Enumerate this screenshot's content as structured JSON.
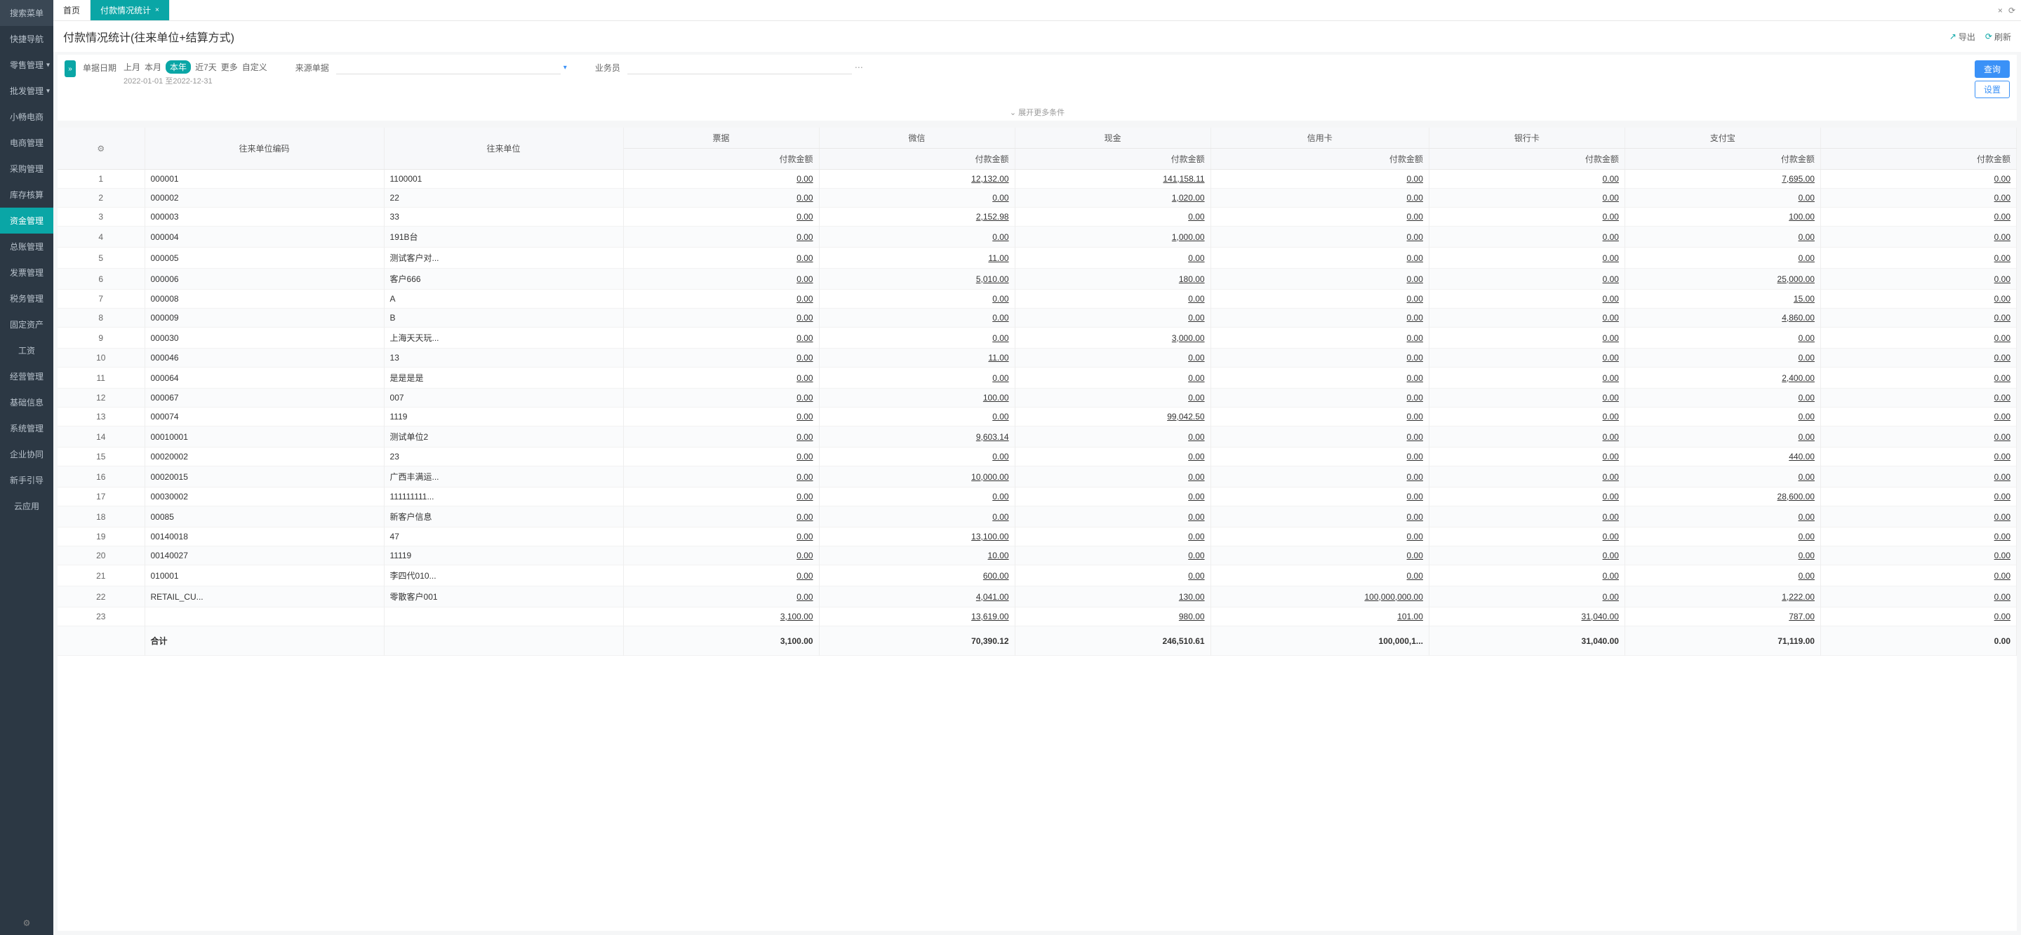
{
  "sidebar": {
    "items": [
      {
        "label": "搜索菜单",
        "active": false,
        "arrow": false
      },
      {
        "label": "快捷导航",
        "active": false,
        "arrow": false
      },
      {
        "label": "零售管理",
        "active": false,
        "arrow": true
      },
      {
        "label": "批发管理",
        "active": false,
        "arrow": true
      },
      {
        "label": "小畅电商",
        "active": false,
        "arrow": false
      },
      {
        "label": "电商管理",
        "active": false,
        "arrow": false
      },
      {
        "label": "采购管理",
        "active": false,
        "arrow": false
      },
      {
        "label": "库存核算",
        "active": false,
        "arrow": false
      },
      {
        "label": "资金管理",
        "active": true,
        "arrow": false
      },
      {
        "label": "总账管理",
        "active": false,
        "arrow": false
      },
      {
        "label": "发票管理",
        "active": false,
        "arrow": false
      },
      {
        "label": "税务管理",
        "active": false,
        "arrow": false
      },
      {
        "label": "固定资产",
        "active": false,
        "arrow": false
      },
      {
        "label": "工资",
        "active": false,
        "arrow": false
      },
      {
        "label": "经营管理",
        "active": false,
        "arrow": false
      },
      {
        "label": "基础信息",
        "active": false,
        "arrow": false
      },
      {
        "label": "系统管理",
        "active": false,
        "arrow": false
      },
      {
        "label": "企业协同",
        "active": false,
        "arrow": false
      },
      {
        "label": "新手引导",
        "active": false,
        "arrow": false
      },
      {
        "label": "云应用",
        "active": false,
        "arrow": false
      }
    ],
    "footer_icon": "⚙"
  },
  "tabs": {
    "items": [
      {
        "label": "首页",
        "active": false,
        "closable": false
      },
      {
        "label": "付款情况统计",
        "active": true,
        "closable": true
      }
    ],
    "right_icons": [
      "×",
      "⟳"
    ]
  },
  "page": {
    "title": "付款情况统计(往来单位+结算方式)",
    "actions": [
      {
        "label": "导出",
        "icon": "↗"
      },
      {
        "label": "刷新",
        "icon": "⟳"
      }
    ]
  },
  "filter": {
    "collapse_icon": "»",
    "date_label": "单据日期",
    "date_presets": [
      {
        "label": "上月",
        "active": false
      },
      {
        "label": "本月",
        "active": false
      },
      {
        "label": "本年",
        "active": true
      },
      {
        "label": "近7天",
        "active": false
      },
      {
        "label": "更多",
        "active": false
      },
      {
        "label": "自定义",
        "active": false
      }
    ],
    "date_range": "2022-01-01 至2022-12-31",
    "source_label": "来源单据",
    "operator_label": "业务员",
    "query_btn": "查询",
    "setting_btn": "设置",
    "expand_more": "展开更多条件"
  },
  "table": {
    "gear_icon": "⚙",
    "columns": {
      "code": "往来单位编码",
      "name": "往来单位",
      "groups": [
        "票据",
        "微信",
        "现金",
        "信用卡",
        "银行卡",
        "支付宝",
        ""
      ],
      "sub": "付款金额"
    },
    "rows": [
      {
        "idx": "1",
        "code": "000001",
        "name": "1100001",
        "amts": [
          "0.00",
          "12,132.00",
          "141,158.11",
          "0.00",
          "0.00",
          "7,695.00",
          "0.00"
        ]
      },
      {
        "idx": "2",
        "code": "000002",
        "name": "22",
        "amts": [
          "0.00",
          "0.00",
          "1,020.00",
          "0.00",
          "0.00",
          "0.00",
          "0.00"
        ]
      },
      {
        "idx": "3",
        "code": "000003",
        "name": "33",
        "amts": [
          "0.00",
          "2,152.98",
          "0.00",
          "0.00",
          "0.00",
          "100.00",
          "0.00"
        ]
      },
      {
        "idx": "4",
        "code": "000004",
        "name": "191B台",
        "amts": [
          "0.00",
          "0.00",
          "1,000.00",
          "0.00",
          "0.00",
          "0.00",
          "0.00"
        ]
      },
      {
        "idx": "5",
        "code": "000005",
        "name": "测试客户对...",
        "amts": [
          "0.00",
          "11.00",
          "0.00",
          "0.00",
          "0.00",
          "0.00",
          "0.00"
        ]
      },
      {
        "idx": "6",
        "code": "000006",
        "name": "客户666",
        "amts": [
          "0.00",
          "5,010.00",
          "180.00",
          "0.00",
          "0.00",
          "25,000.00",
          "0.00"
        ]
      },
      {
        "idx": "7",
        "code": "000008",
        "name": "A",
        "amts": [
          "0.00",
          "0.00",
          "0.00",
          "0.00",
          "0.00",
          "15.00",
          "0.00"
        ]
      },
      {
        "idx": "8",
        "code": "000009",
        "name": "B",
        "amts": [
          "0.00",
          "0.00",
          "0.00",
          "0.00",
          "0.00",
          "4,860.00",
          "0.00"
        ]
      },
      {
        "idx": "9",
        "code": "000030",
        "name": "上海天天玩...",
        "amts": [
          "0.00",
          "0.00",
          "3,000.00",
          "0.00",
          "0.00",
          "0.00",
          "0.00"
        ]
      },
      {
        "idx": "10",
        "code": "000046",
        "name": "13",
        "amts": [
          "0.00",
          "11.00",
          "0.00",
          "0.00",
          "0.00",
          "0.00",
          "0.00"
        ]
      },
      {
        "idx": "11",
        "code": "000064",
        "name": "是是是是",
        "amts": [
          "0.00",
          "0.00",
          "0.00",
          "0.00",
          "0.00",
          "2,400.00",
          "0.00"
        ]
      },
      {
        "idx": "12",
        "code": "000067",
        "name": "007",
        "amts": [
          "0.00",
          "100.00",
          "0.00",
          "0.00",
          "0.00",
          "0.00",
          "0.00"
        ]
      },
      {
        "idx": "13",
        "code": "000074",
        "name": "1119",
        "amts": [
          "0.00",
          "0.00",
          "99,042.50",
          "0.00",
          "0.00",
          "0.00",
          "0.00"
        ]
      },
      {
        "idx": "14",
        "code": "00010001",
        "name": "测试单位2",
        "amts": [
          "0.00",
          "9,603.14",
          "0.00",
          "0.00",
          "0.00",
          "0.00",
          "0.00"
        ]
      },
      {
        "idx": "15",
        "code": "00020002",
        "name": "23",
        "amts": [
          "0.00",
          "0.00",
          "0.00",
          "0.00",
          "0.00",
          "440.00",
          "0.00"
        ]
      },
      {
        "idx": "16",
        "code": "00020015",
        "name": "广西丰满运...",
        "amts": [
          "0.00",
          "10,000.00",
          "0.00",
          "0.00",
          "0.00",
          "0.00",
          "0.00"
        ]
      },
      {
        "idx": "17",
        "code": "00030002",
        "name": "111111111...",
        "amts": [
          "0.00",
          "0.00",
          "0.00",
          "0.00",
          "0.00",
          "28,600.00",
          "0.00"
        ]
      },
      {
        "idx": "18",
        "code": "00085",
        "name": "新客户信息",
        "amts": [
          "0.00",
          "0.00",
          "0.00",
          "0.00",
          "0.00",
          "0.00",
          "0.00"
        ]
      },
      {
        "idx": "19",
        "code": "00140018",
        "name": "47",
        "amts": [
          "0.00",
          "13,100.00",
          "0.00",
          "0.00",
          "0.00",
          "0.00",
          "0.00"
        ]
      },
      {
        "idx": "20",
        "code": "00140027",
        "name": "11119",
        "amts": [
          "0.00",
          "10.00",
          "0.00",
          "0.00",
          "0.00",
          "0.00",
          "0.00"
        ]
      },
      {
        "idx": "21",
        "code": "010001",
        "name": "李四代010...",
        "amts": [
          "0.00",
          "600.00",
          "0.00",
          "0.00",
          "0.00",
          "0.00",
          "0.00"
        ]
      },
      {
        "idx": "22",
        "code": "RETAIL_CU...",
        "name": "零散客户001",
        "amts": [
          "0.00",
          "4,041.00",
          "130.00",
          "100,000,000.00",
          "0.00",
          "1,222.00",
          "0.00"
        ]
      },
      {
        "idx": "23",
        "code": "",
        "name": "",
        "amts": [
          "3,100.00",
          "13,619.00",
          "980.00",
          "101.00",
          "31,040.00",
          "787.00",
          "0.00"
        ],
        "plain": true
      }
    ],
    "footer": {
      "label": "合计",
      "amts": [
        "3,100.00",
        "70,390.12",
        "246,510.61",
        "100,000,1...",
        "31,040.00",
        "71,119.00",
        "0.00"
      ]
    }
  }
}
